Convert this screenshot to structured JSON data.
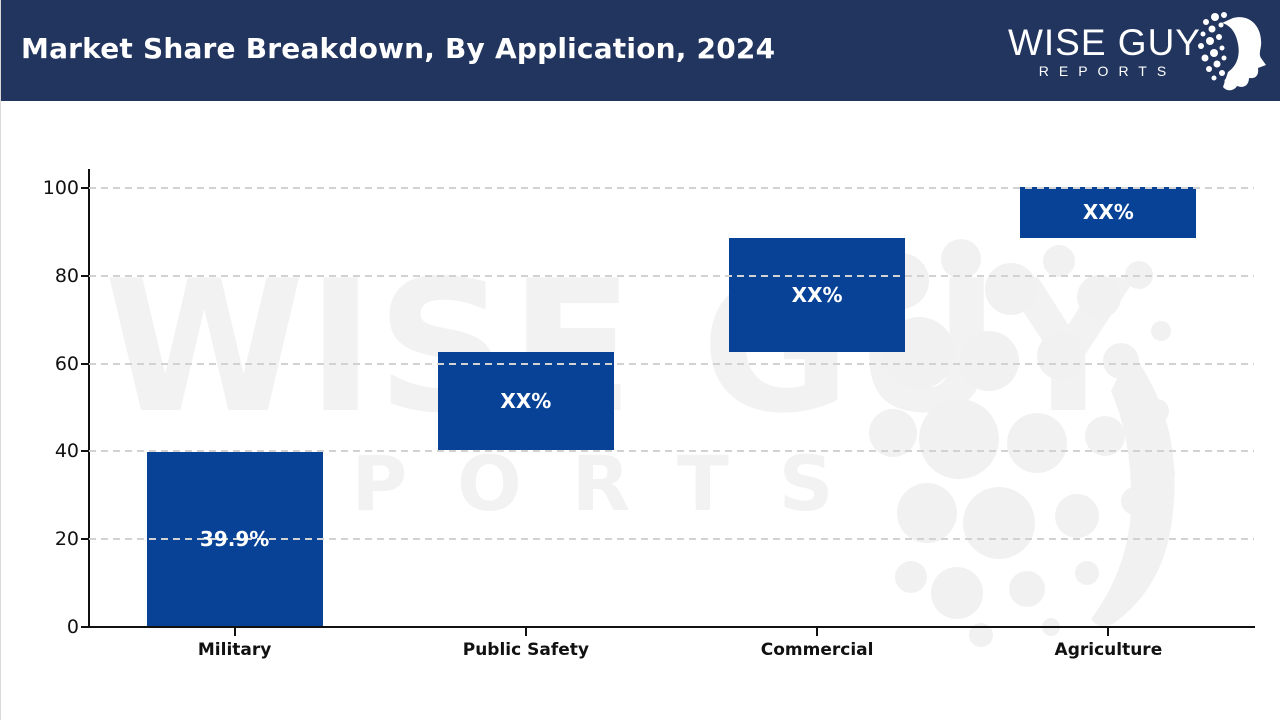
{
  "header": {
    "title": "Market Share Breakdown, By Application, 2024",
    "logo": {
      "line1": "WISE GUY",
      "line2": "REPORTS"
    }
  },
  "watermark": {
    "line1": "WISE GUY",
    "line2": "REPORTS"
  },
  "colors": {
    "header_bg": "#21355f",
    "bar": "#074297",
    "gridline": "#d2d2d2",
    "axis": "#111111",
    "watermark": "#f2f2f2",
    "title_text": "#ffffff",
    "bar_label_text": "#ffffff"
  },
  "chart_data": {
    "type": "bar",
    "subtype": "waterfall-breakdown",
    "title": "Market Share Breakdown, By Application, 2024",
    "categories": [
      "Military",
      "Public Safety",
      "Commercial",
      "Agriculture"
    ],
    "segments": [
      {
        "category": "Military",
        "from": 0.0,
        "to": 39.9,
        "label": "39.9%"
      },
      {
        "category": "Public Safety",
        "from": 40.3,
        "to": 62.6,
        "label": "XX%"
      },
      {
        "category": "Commercial",
        "from": 62.6,
        "to": 88.6,
        "label": "XX%"
      },
      {
        "category": "Agriculture",
        "from": 88.6,
        "to": 100.3,
        "label": "XX%"
      }
    ],
    "y_ticks": [
      0,
      20,
      40,
      60,
      80,
      100
    ],
    "ylim": [
      0,
      104
    ],
    "xlabel": "",
    "ylabel": "",
    "grid": "horizontal-dashed-over-bars",
    "legend": "none"
  }
}
